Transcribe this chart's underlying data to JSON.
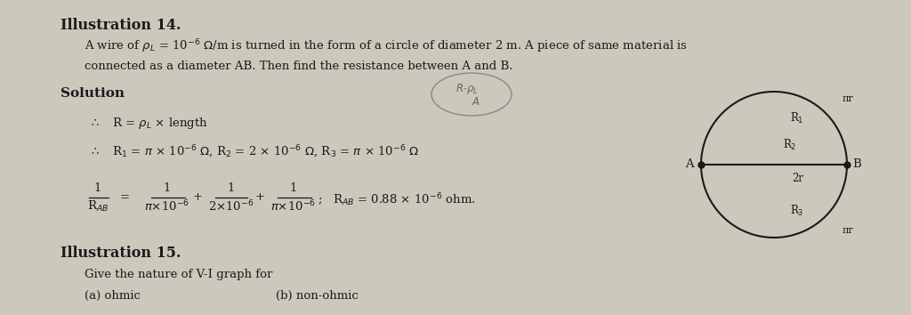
{
  "bg_color": "#ccc8bc",
  "font_color": "#1a1a1a",
  "fs_title": 11.5,
  "fs_body": 9.5,
  "fs_sol": 11,
  "title": "Illustration 14.",
  "line1": "A wire of $\\rho_L$ = 10$^{-6}$ $\\Omega$/m is turned in the form of a circle of diameter 2 m. A piece of same material is",
  "line2": "connected as a diameter AB. Then find the resistance between A and B.",
  "solution": "Solution",
  "therefore1": "$\\therefore$   R = $\\rho_L$ $\\times$ length",
  "therefore2": "$\\therefore$   R$_1$ = $\\pi$ $\\times$ 10$^{-6}$ $\\Omega$, R$_2$ = 2 $\\times$ 10$^{-6}$ $\\Omega$, R$_3$ = $\\pi$ $\\times$ 10$^{-6}$ $\\Omega$",
  "rab_result": ";   R$_{AB}$ = 0.88 $\\times$ 10$^{-6}$ ohm.",
  "ill15": "Illustration 15.",
  "ill15_line": "Give the nature of V-I graph for",
  "ill15_a": "(a) ohmic",
  "ill15_b": "(b) non-ohmic"
}
